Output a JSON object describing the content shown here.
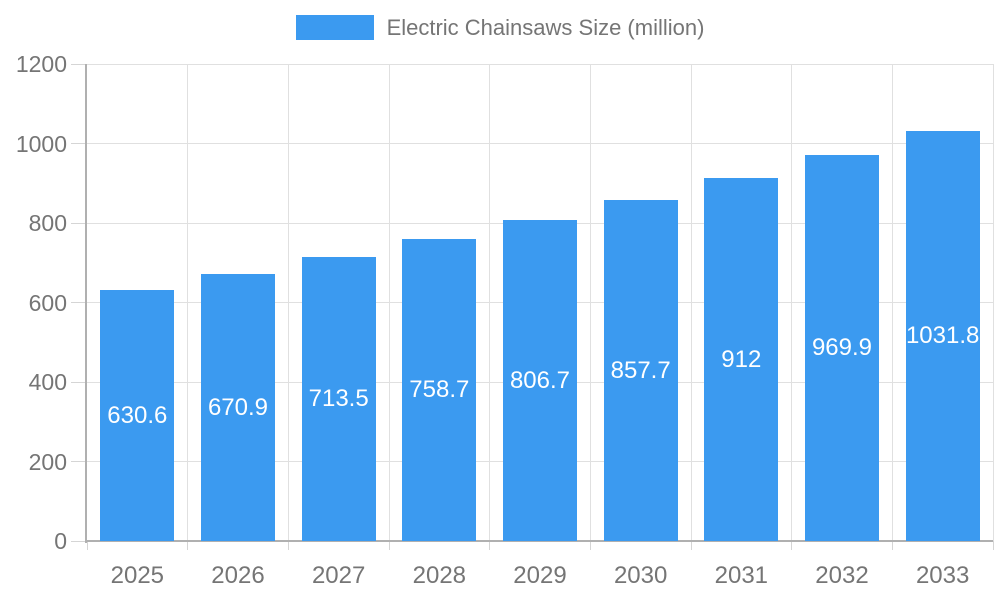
{
  "chart_data": {
    "type": "bar",
    "title": "Electric Chainsaws Size (million)",
    "legend_position": "top",
    "categories": [
      "2025",
      "2026",
      "2027",
      "2028",
      "2029",
      "2030",
      "2031",
      "2032",
      "2033"
    ],
    "values": [
      630.6,
      670.9,
      713.5,
      758.7,
      806.7,
      857.7,
      912,
      969.9,
      1031.8
    ],
    "value_labels": [
      "630.6",
      "670.9",
      "713.5",
      "758.7",
      "806.7",
      "857.7",
      "912",
      "969.9",
      "1031.8"
    ],
    "xlabel": "",
    "ylabel": "",
    "ylim": [
      0,
      1200
    ],
    "y_ticks": [
      0,
      200,
      400,
      600,
      800,
      1000,
      1200
    ],
    "grid": true,
    "colors": {
      "bar": "#3b9af0",
      "bar_label_text": "#ffffff",
      "axis_text": "#757575",
      "grid_line": "#e0e0e0",
      "axis_line": "#b0b0b0",
      "background": "#ffffff"
    }
  }
}
